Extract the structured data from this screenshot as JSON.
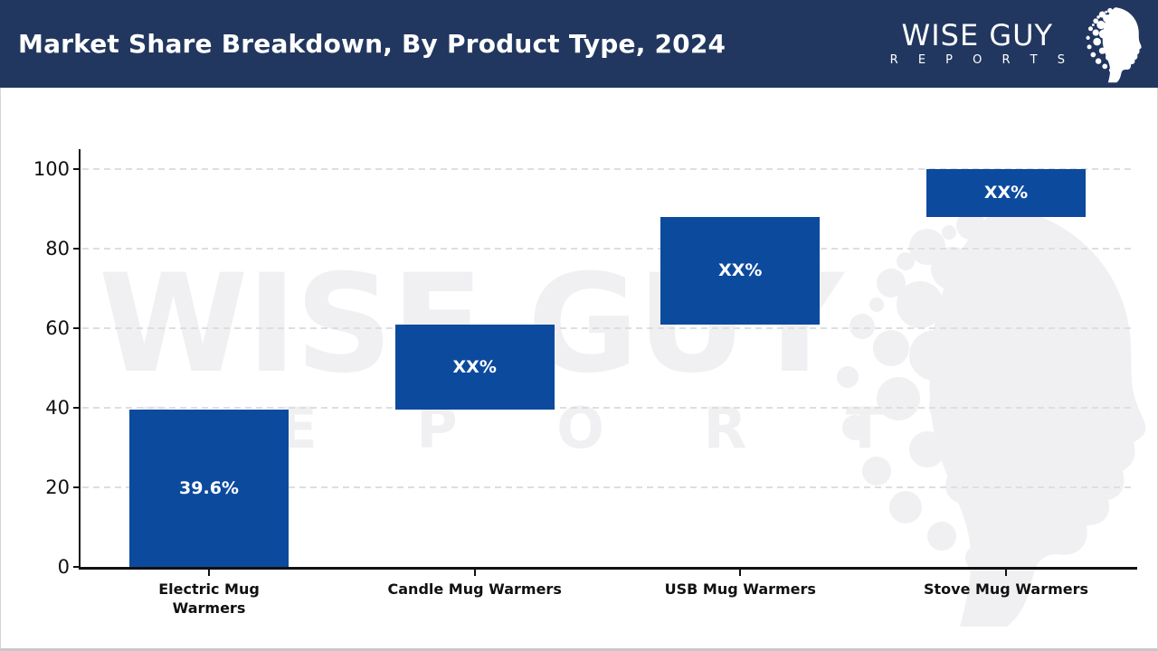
{
  "header": {
    "title": "Market Share Breakdown, By Product Type, 2024",
    "bg_color": "#21375f",
    "logo": {
      "line1": "WISE GUY",
      "line2": "R E P O R T S",
      "icon": "head-profile-dots-logo"
    }
  },
  "watermark": {
    "line1": "WISE GUY",
    "line2": "R E P O R T S",
    "icon": "head-profile-dots-watermark",
    "color": "#f0f0f2"
  },
  "chart_data": {
    "type": "bar",
    "subtype": "waterfall",
    "title": "Market Share Breakdown, By Product Type, 2024",
    "categories": [
      "Electric Mug\nWarmers",
      "Candle Mug Warmers",
      "USB Mug Warmers",
      "Stove Mug Warmers"
    ],
    "series": [
      {
        "name": "Market Share",
        "segments": [
          {
            "category": "Electric Mug Warmers",
            "start": 0,
            "end": 39.6,
            "label": "39.6%"
          },
          {
            "category": "Candle Mug Warmers",
            "start": 39.6,
            "end": 61,
            "label": "XX%"
          },
          {
            "category": "USB Mug Warmers",
            "start": 61,
            "end": 88,
            "label": "XX%"
          },
          {
            "category": "Stove Mug Warmers",
            "start": 88,
            "end": 100,
            "label": "XX%"
          }
        ]
      }
    ],
    "ylim": [
      0,
      100
    ],
    "yticks": [
      0,
      20,
      40,
      60,
      80,
      100
    ],
    "xlabel": "",
    "ylabel": "",
    "grid": "horizontal-dashed",
    "legend": "none",
    "bar_color": "#0c4a9e",
    "bar_label_color": "#ffffff",
    "axis_color": "#111111",
    "gridline_color": "#dedede"
  }
}
